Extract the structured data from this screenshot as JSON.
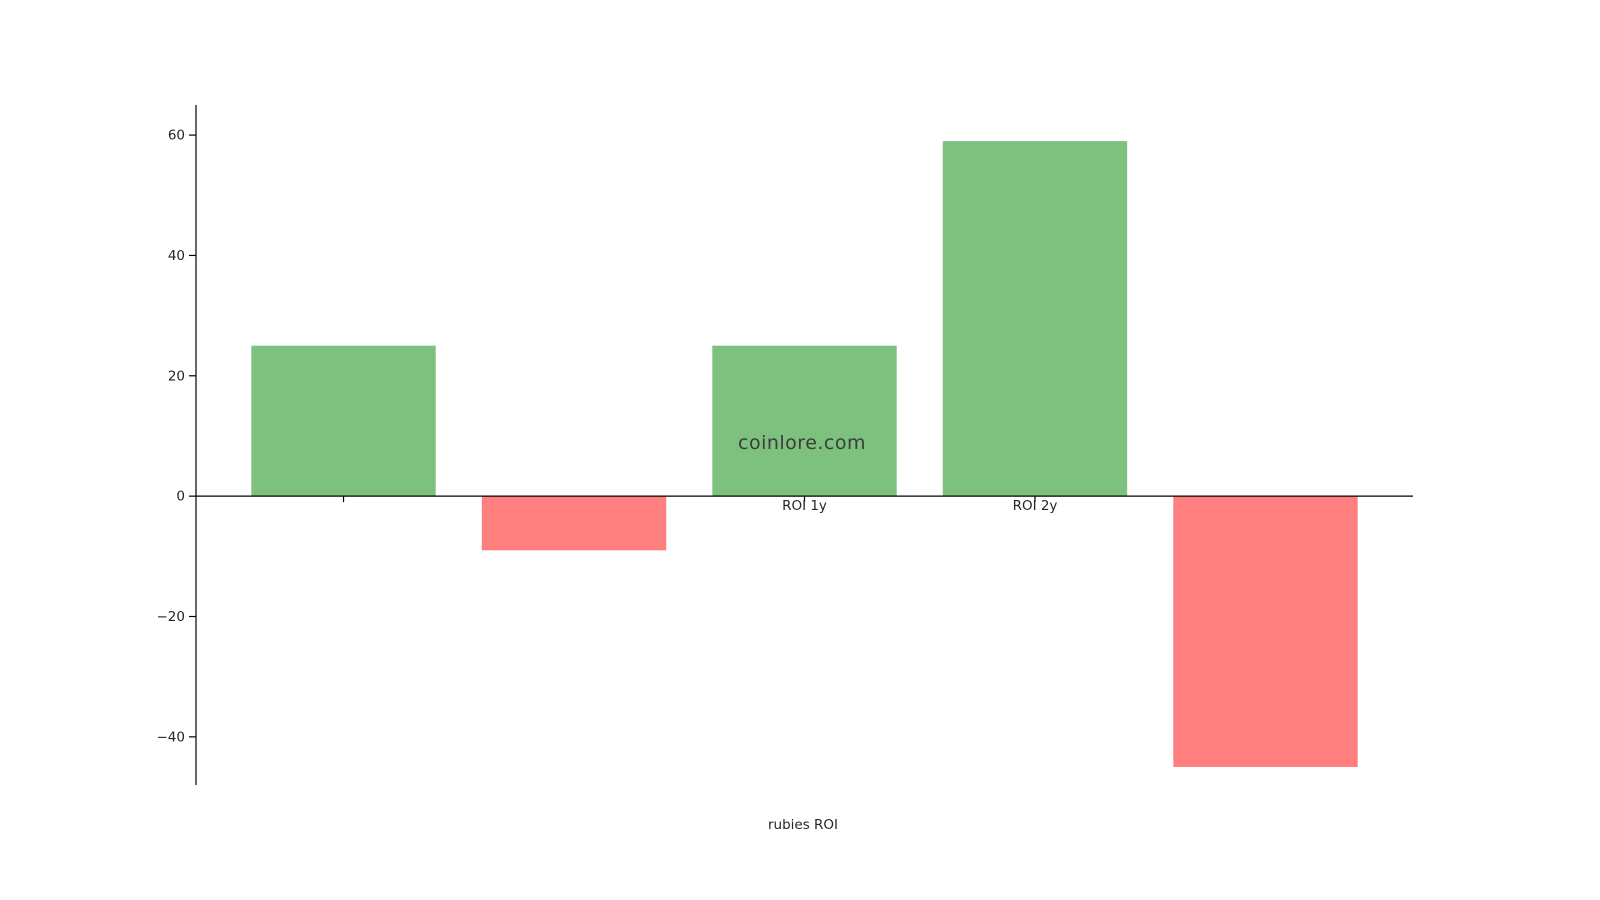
{
  "page": {
    "background": "#ffffff"
  },
  "watermark": {
    "text": "coinlore.com",
    "color": "#3c3c3c"
  },
  "chart_data": {
    "type": "bar",
    "title": "",
    "xlabel": "rubies ROI",
    "ylabel": "",
    "categories": [
      "",
      "",
      "ROI 1y",
      "ROI 2y",
      ""
    ],
    "values": [
      25,
      -9,
      25,
      59,
      -45
    ],
    "positive_color": "#7ec07e",
    "negative_color": "#ff7f7f",
    "axis_color": "#000000",
    "tick_label_color": "#262626",
    "yticks": [
      -40,
      -20,
      0,
      20,
      40,
      60
    ],
    "ylim": [
      -48,
      65
    ],
    "grid": false,
    "legend": false
  }
}
